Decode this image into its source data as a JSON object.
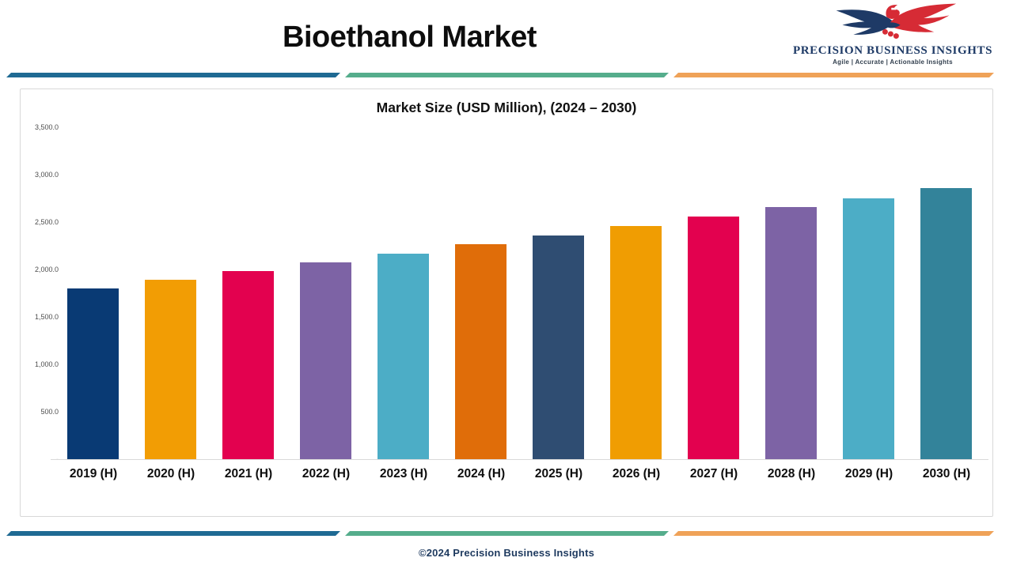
{
  "page": {
    "title": "Bioethanol Market",
    "footer": "©2024 Precision Business Insights"
  },
  "logo": {
    "name": "PRECISION BUSINESS INSIGHTS",
    "tagline": "Agile | Accurate | Actionable Insights",
    "navy": "#1e3a66",
    "red": "#d62b35"
  },
  "dividers": {
    "blue": "#1f6a93",
    "green": "#55ad8c",
    "orange": "#efa258"
  },
  "chart_data": {
    "type": "bar",
    "title": "Market Size (USD Million), (2024 – 2030)",
    "categories": [
      "2019 (H)",
      "2020 (H)",
      "2021 (H)",
      "2022 (H)",
      "2023 (H)",
      "2024 (H)",
      "2025 (H)",
      "2026 (H)",
      "2027 (H)",
      "2028 (H)",
      "2029 (H)",
      "2030 (H)"
    ],
    "values": [
      1800,
      1890,
      1980,
      2075,
      2165,
      2265,
      2355,
      2455,
      2555,
      2655,
      2750,
      2855
    ],
    "bar_colors": [
      "#093a74",
      "#f29d04",
      "#e3014f",
      "#7d63a5",
      "#4cadc6",
      "#e06d09",
      "#2f4d72",
      "#f09d02",
      "#e3014f",
      "#7d63a5",
      "#4cadc6",
      "#33839a"
    ],
    "xlabel": "",
    "ylabel": "",
    "ylim": [
      0,
      3500
    ],
    "ytick_interval": 500,
    "y_tick_labels": [
      "3,500.0",
      "3,000.0",
      "2,500.0",
      "2,000.0",
      "1,500.0",
      "1,000.0",
      "500.0",
      "-"
    ],
    "grid": false,
    "legend": "none"
  }
}
